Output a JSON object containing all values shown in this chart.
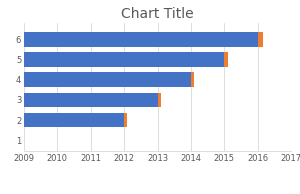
{
  "title": "Chart Title",
  "y_labels": [
    "1",
    "2",
    "3",
    "4",
    "5",
    "6"
  ],
  "cpi_year_values": [
    0,
    3,
    4,
    5,
    6,
    7
  ],
  "cpi_pct_values": [
    0,
    0.1,
    0.1,
    0.1,
    0.1,
    0.15
  ],
  "cpi_year_start": 2009,
  "x_ticks": [
    2009,
    2010,
    2011,
    2012,
    2013,
    2014,
    2015,
    2016,
    2017
  ],
  "xlim": [
    2009,
    2017
  ],
  "ylim": [
    0.45,
    6.8
  ],
  "bar_color_blue": "#4472C4",
  "bar_color_orange": "#ED7D31",
  "bg_color": "#FFFFFF",
  "grid_color": "#D0D0D0",
  "title_fontsize": 10,
  "tick_fontsize": 6,
  "legend_fontsize": 6,
  "bar_height": 0.72,
  "title_color": "#595959"
}
